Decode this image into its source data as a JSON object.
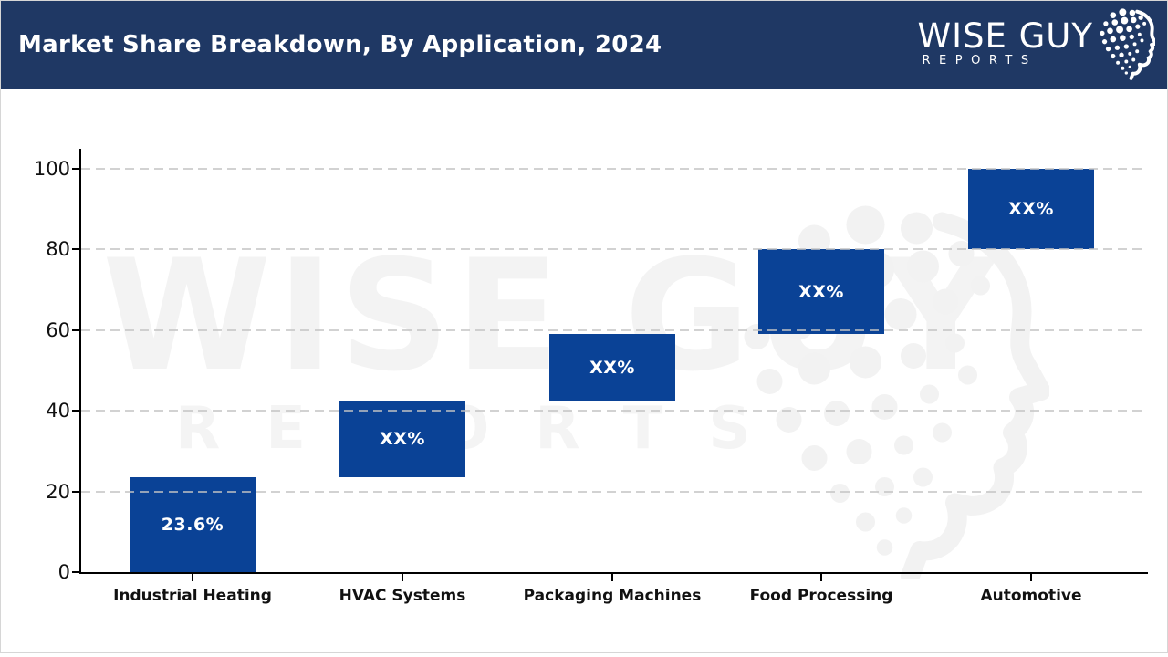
{
  "header": {
    "title": "Market Share Breakdown, By Application, 2024",
    "logo": {
      "line1": "WISE GUY",
      "line2": "REPORTS"
    }
  },
  "watermark": {
    "line1": "WISE GUY",
    "line2": "REPORTS"
  },
  "colors": {
    "header_navy": "#1f3864",
    "bar_blue": "#0a4296",
    "gridline_gray": "#c9c9c9",
    "axis_black": "#000000",
    "watermark_gray": "#f2f2f2",
    "text_dark": "#111111",
    "bar_label_white": "#ffffff"
  },
  "chart_data": {
    "type": "bar",
    "subtype": "waterfall-step",
    "title": "Market Share Breakdown, By Application, 2024",
    "categories": [
      "Industrial Heating",
      "HVAC Systems",
      "Packaging Machines",
      "Food Processing",
      "Automotive"
    ],
    "series": [
      {
        "name": "Market Share",
        "segments": [
          {
            "category": "Industrial Heating",
            "start": 0,
            "end": 23.6,
            "label": "23.6%"
          },
          {
            "category": "HVAC Systems",
            "start": 23.6,
            "end": 42.6,
            "label": "XX%"
          },
          {
            "category": "Packaging Machines",
            "start": 42.6,
            "end": 59.0,
            "label": "XX%"
          },
          {
            "category": "Food Processing",
            "start": 59.0,
            "end": 80.0,
            "label": "XX%"
          },
          {
            "category": "Automotive",
            "start": 80.0,
            "end": 100.0,
            "label": "XX%"
          }
        ]
      }
    ],
    "yticks": [
      0,
      20,
      40,
      60,
      80,
      100
    ],
    "ytick_labels": [
      "0",
      "20",
      "40",
      "60",
      "80",
      "100"
    ],
    "ylim": [
      0,
      105
    ],
    "xlabel": "",
    "ylabel": "",
    "grid": "horizontal-dashed-over-bars",
    "legend": "none"
  }
}
